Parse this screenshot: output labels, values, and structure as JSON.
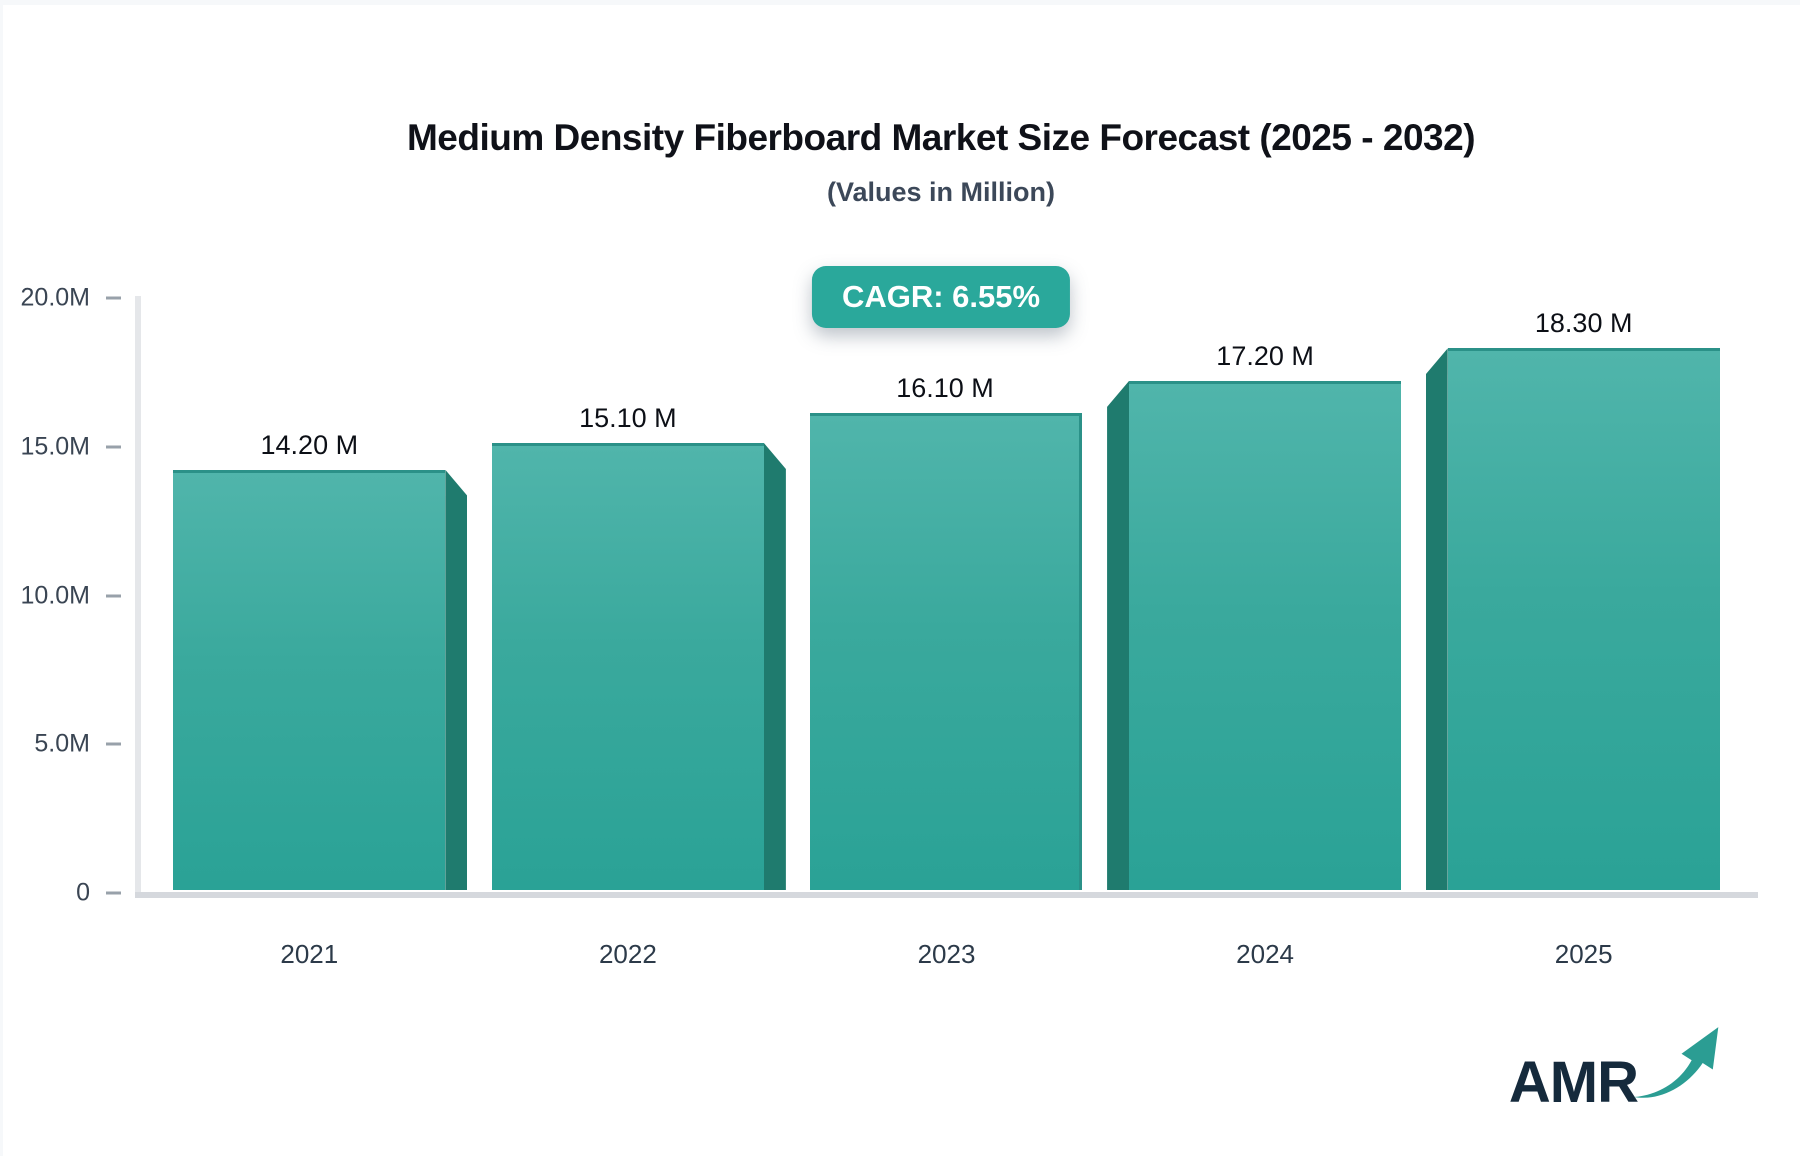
{
  "header": {
    "title": "Medium Density Fiberboard Market Size Forecast (2025 - 2032)",
    "subtitle": "(Values in Million)"
  },
  "badge": {
    "label": "CAGR: 6.55%",
    "bg": "#2aa89b",
    "text_color": "#ffffff"
  },
  "chart_data": {
    "type": "bar",
    "title": "Medium Density Fiberboard Market Size Forecast (2025 - 2032)",
    "subtitle": "(Values in Million)",
    "categories": [
      "2021",
      "2022",
      "2023",
      "2024",
      "2025"
    ],
    "values": [
      14.2,
      15.1,
      16.1,
      17.2,
      18.3
    ],
    "value_labels": [
      "14.20 M",
      "15.10 M",
      "16.10 M",
      "17.20 M",
      "18.30 M"
    ],
    "xlabel": "",
    "ylabel": "",
    "ylim": [
      0,
      20
    ],
    "yticks": [
      {
        "value": 20,
        "label": "20.0M"
      },
      {
        "value": 15,
        "label": "15.0M"
      },
      {
        "value": 10,
        "label": "10.0M"
      },
      {
        "value": 5,
        "label": "5.0M"
      },
      {
        "value": 0,
        "label": "0"
      }
    ],
    "grid": false,
    "legend": false,
    "bar_color_top": "#50b5ab",
    "bar_color_bottom": "#2aa296",
    "bar_edge_color": "#2b9188",
    "bevel_color": "#1f7b6e",
    "bevel_sides": [
      "right",
      "right",
      "none",
      "left",
      "left"
    ],
    "axis_color": "#d5d8dd"
  },
  "logo": {
    "text": "AMR",
    "color": "#152a3c",
    "arrow_color": "#2b9d93",
    "arrow_icon": "trend-up-arrow"
  }
}
